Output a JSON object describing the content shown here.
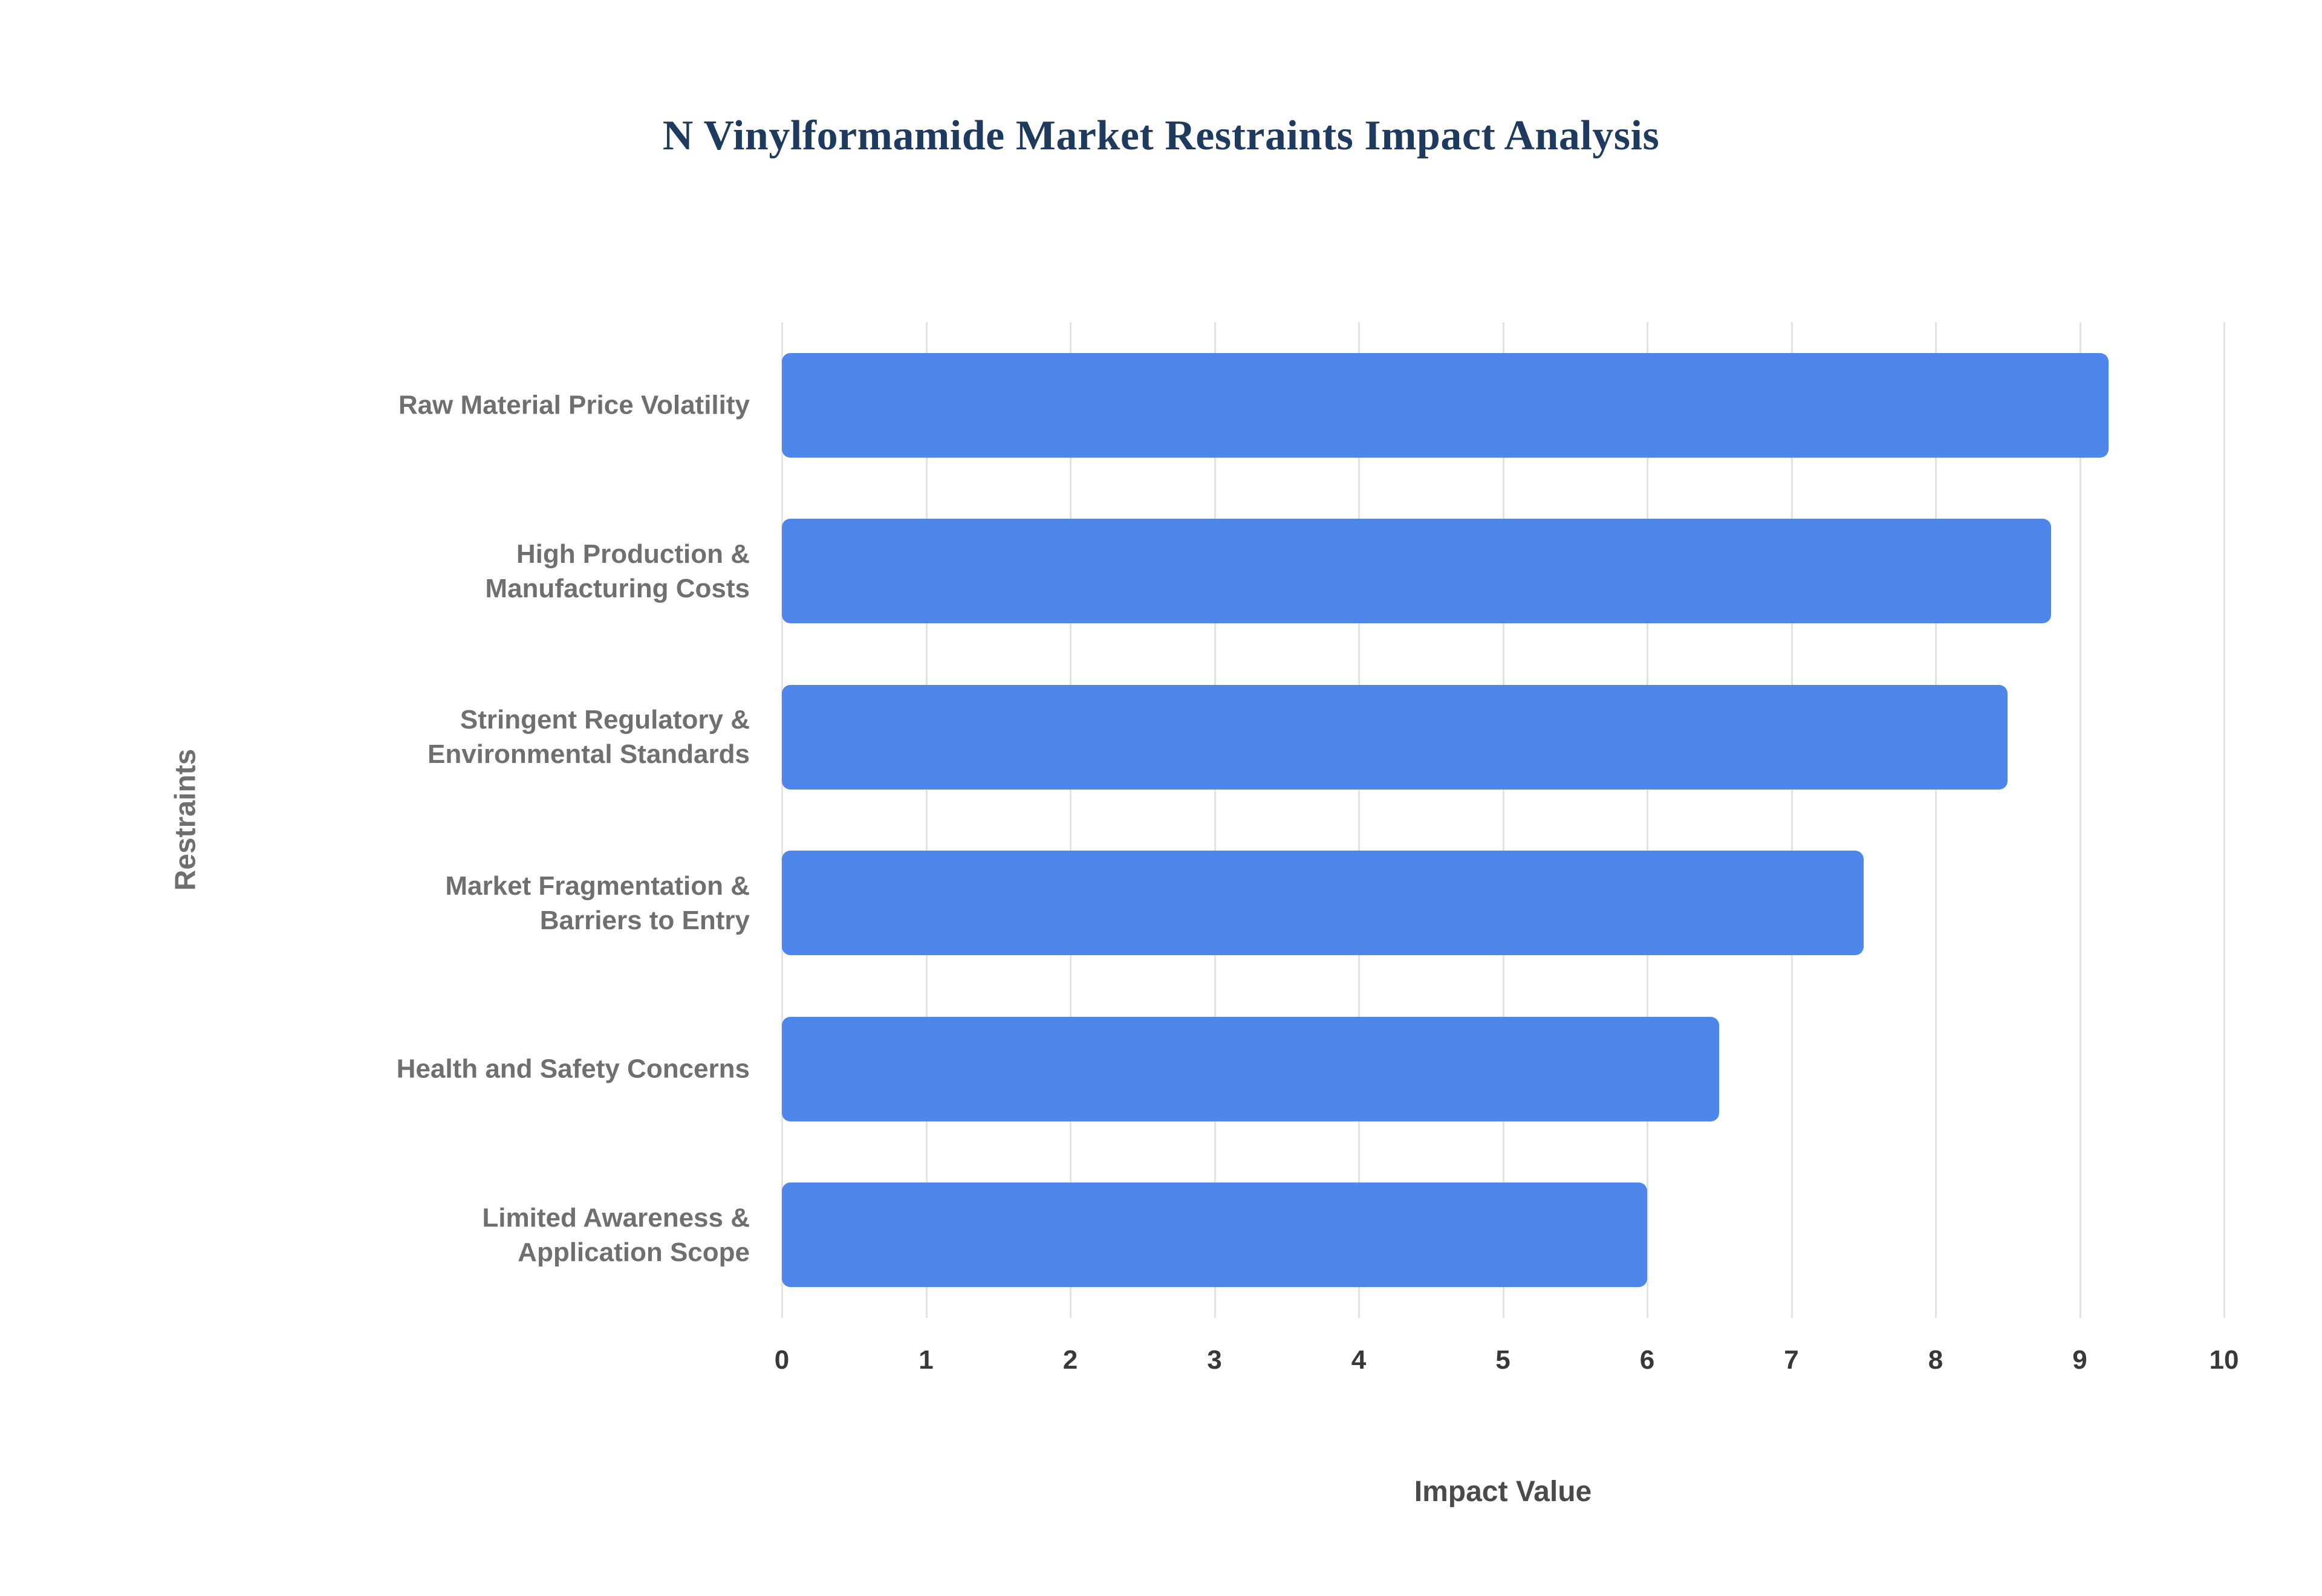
{
  "chart_data": {
    "type": "bar",
    "orientation": "horizontal",
    "title": "N Vinylformamide Market Restraints Impact Analysis",
    "xlabel": "Impact Value",
    "ylabel": "Restraints",
    "xlim": [
      0,
      10
    ],
    "xticks": [
      0,
      1,
      2,
      3,
      4,
      5,
      6,
      7,
      8,
      9,
      10
    ],
    "grid": true,
    "legend": "none",
    "categories": [
      [
        "Raw Material Price Volatility"
      ],
      [
        "High Production &",
        "Manufacturing Costs"
      ],
      [
        "Stringent Regulatory &",
        "Environmental Standards"
      ],
      [
        "Market Fragmentation &",
        "Barriers to Entry"
      ],
      [
        "Health and Safety Concerns"
      ],
      [
        "Limited Awareness &",
        "Application Scope"
      ]
    ],
    "values": [
      9.2,
      8.8,
      8.5,
      7.5,
      6.5,
      6.0
    ],
    "colors": {
      "bar": "#4f86ec",
      "gridline": "#e3e3e3",
      "title": "#1e3a5f",
      "category_label": "#6f6f6f",
      "tick_label": "#383838"
    }
  }
}
